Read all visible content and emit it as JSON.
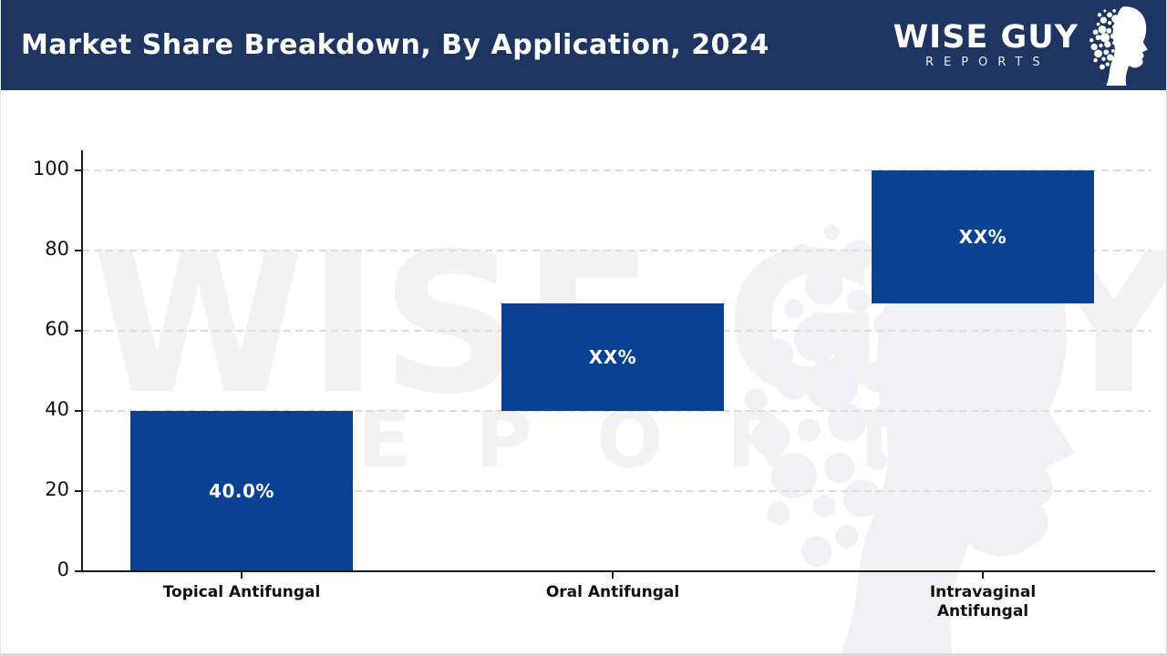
{
  "header": {
    "title": "Market Share Breakdown, By Application, 2024",
    "bg_color": "#1f3561",
    "logo": {
      "line1": "WISE GUY",
      "line2": "REPORTS"
    }
  },
  "watermark": {
    "line1": "WISE GUY",
    "line2": "REPORTS"
  },
  "chart_data": {
    "type": "bar",
    "subtype": "waterfall",
    "title": "Market Share Breakdown, By Application, 2024",
    "categories": [
      "Topical Antifungal",
      "Oral Antifungal",
      "Intravaginal\nAntifungal"
    ],
    "segments": [
      {
        "label": "40.0%",
        "start": 0,
        "end": 40
      },
      {
        "label": "XX%",
        "start": 40,
        "end": 66.8
      },
      {
        "label": "XX%",
        "start": 66.8,
        "end": 100
      }
    ],
    "xlabel": "",
    "ylabel": "",
    "ylim": [
      0,
      100
    ],
    "yticks": [
      0,
      20,
      40,
      60,
      80,
      100
    ],
    "grid": "horizontal-dashed",
    "legend": "none",
    "bar_color": "#0a4193",
    "label_color": "#ffffff",
    "grid_color": "#dedede"
  }
}
